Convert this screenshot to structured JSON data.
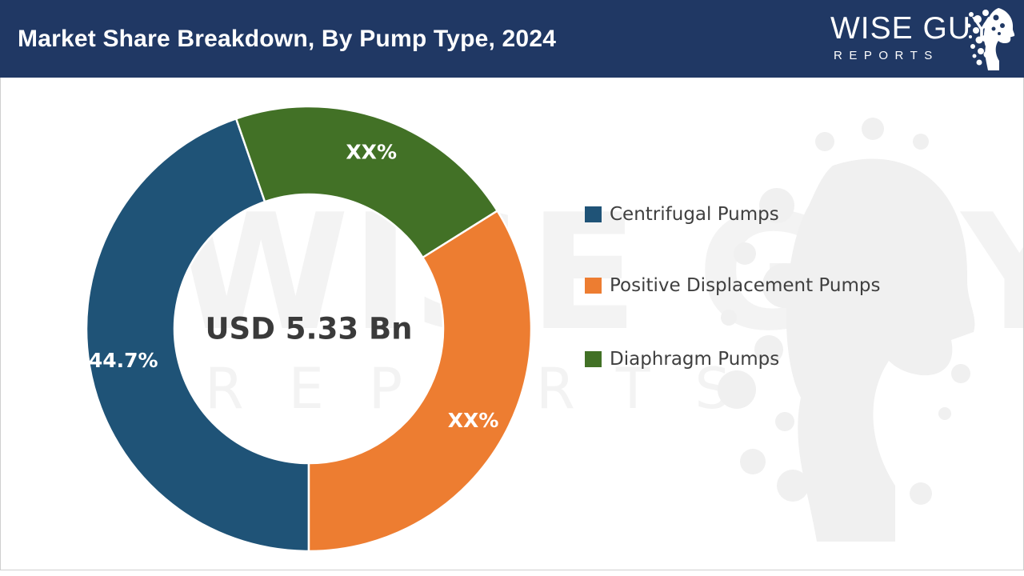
{
  "header": {
    "title": "Market Share Breakdown, By Pump Type, 2024",
    "logo": {
      "line1": "WISE GUY",
      "line2": "REPORTS"
    }
  },
  "chart_data": {
    "type": "pie",
    "subtype": "donut",
    "title": "Market Share Breakdown, By Pump Type, 2024",
    "center_label": "USD 5.33 Bn",
    "legend_position": "right",
    "start_css_angle_deg": 180,
    "draw_order": [
      0,
      2,
      1
    ],
    "segments": [
      {
        "label": "Centrifugal Pumps",
        "value_pct": 44.7,
        "display": "44.7%",
        "color": "#1F5377"
      },
      {
        "label": "Positive Displacement Pumps",
        "value_pct": 33.9,
        "display": "XX%",
        "color": "#ED7D31"
      },
      {
        "label": "Diaphragm Pumps",
        "value_pct": 21.4,
        "display": "XX%",
        "color": "#427126"
      }
    ]
  },
  "watermark": {
    "line1": "WISE GUY",
    "line2": "REPORTS"
  }
}
